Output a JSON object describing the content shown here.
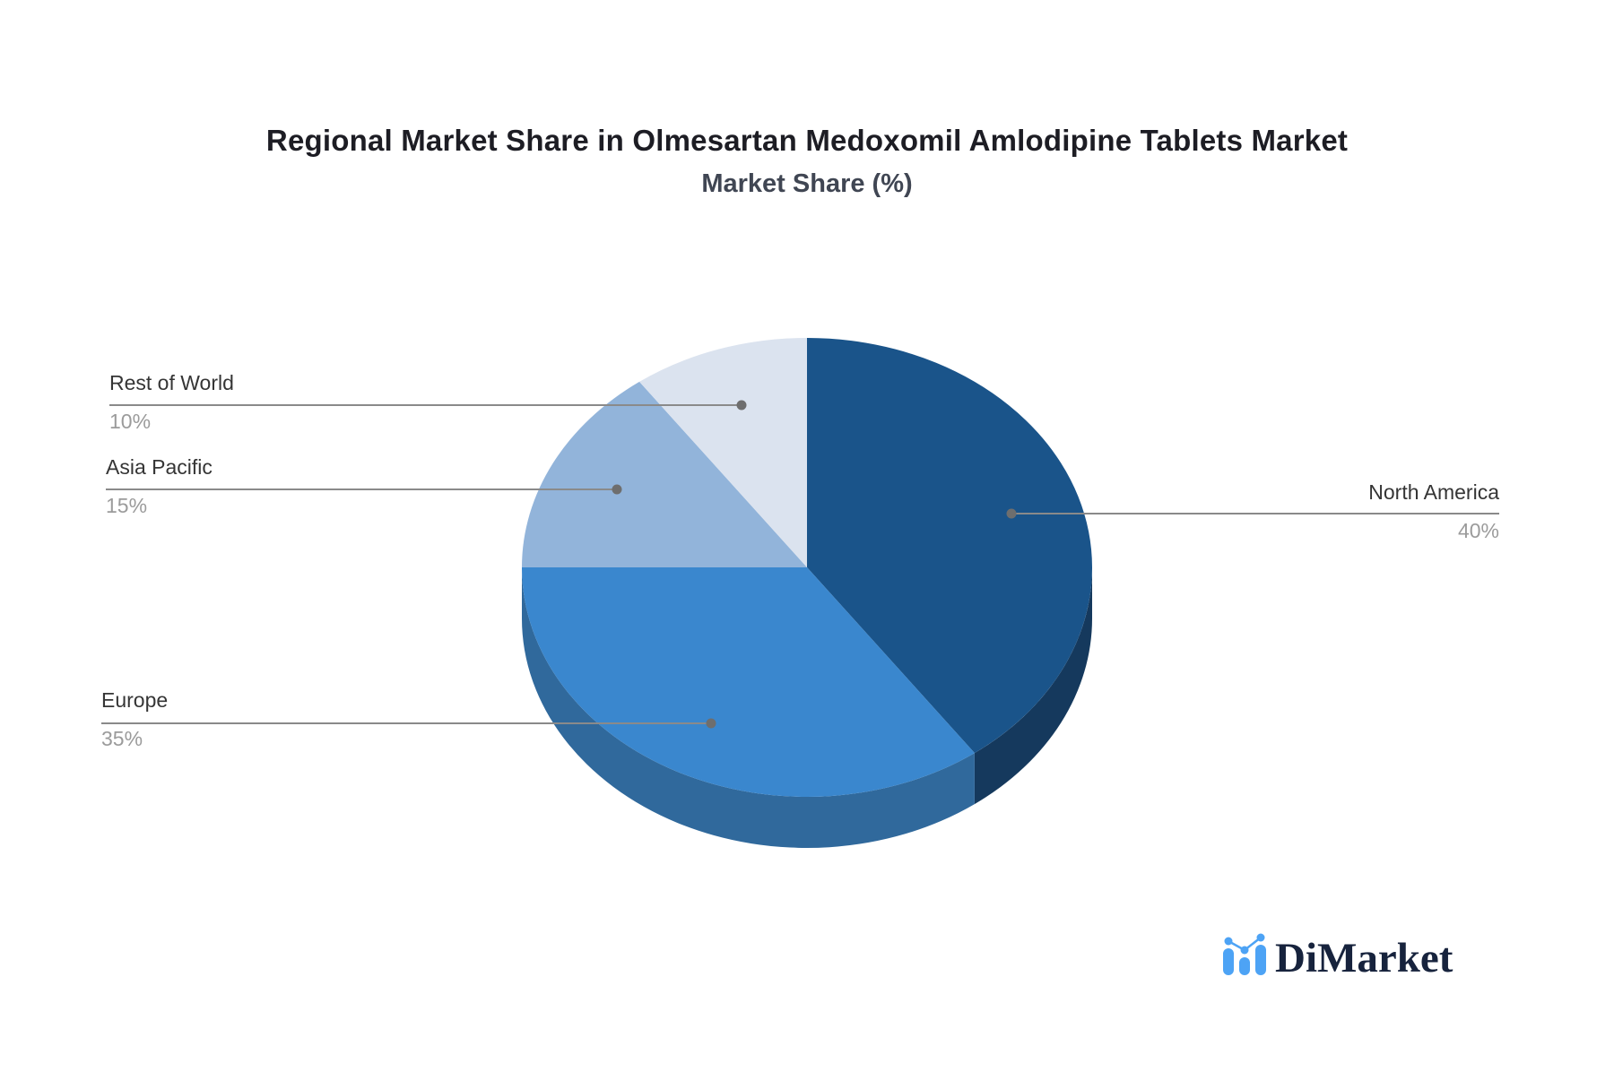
{
  "title": "Regional Market Share in Olmesartan Medoxomil Amlodipine Tablets Market",
  "subtitle": "Market Share (%)",
  "chart_data": {
    "type": "pie",
    "title": "Regional Market Share in Olmesartan Medoxomil Amlodipine Tablets Market",
    "subtitle": "Market Share (%)",
    "unit": "%",
    "effect_3d": true,
    "direction": "clockwise",
    "start_angle": "12 o'clock",
    "legend_position": "callout-labels",
    "slices": [
      {
        "label": "North America",
        "value": 40,
        "pct_text": "40%",
        "color": "#1a548a",
        "side_color": "#15395d"
      },
      {
        "label": "Europe",
        "value": 35,
        "pct_text": "35%",
        "color": "#3a87ce",
        "side_color": "#30699c"
      },
      {
        "label": "Asia Pacific",
        "value": 15,
        "pct_text": "15%",
        "color": "#92b4da",
        "side_color": "#6d8aa8"
      },
      {
        "label": "Rest of World",
        "value": 10,
        "pct_text": "10%",
        "color": "#dbe3ef",
        "side_color": "#a8b2c2"
      }
    ]
  },
  "callout_style": {
    "line_color": "#8a8a8a",
    "dot_color": "#6e6e6e",
    "label_color": "#353535",
    "pct_color": "#9b9b9b"
  },
  "brand": {
    "name": "DiMarket",
    "icon": "bar-line-chart-icon",
    "icon_color": "#4da3f5",
    "text_color": "#17233d"
  }
}
